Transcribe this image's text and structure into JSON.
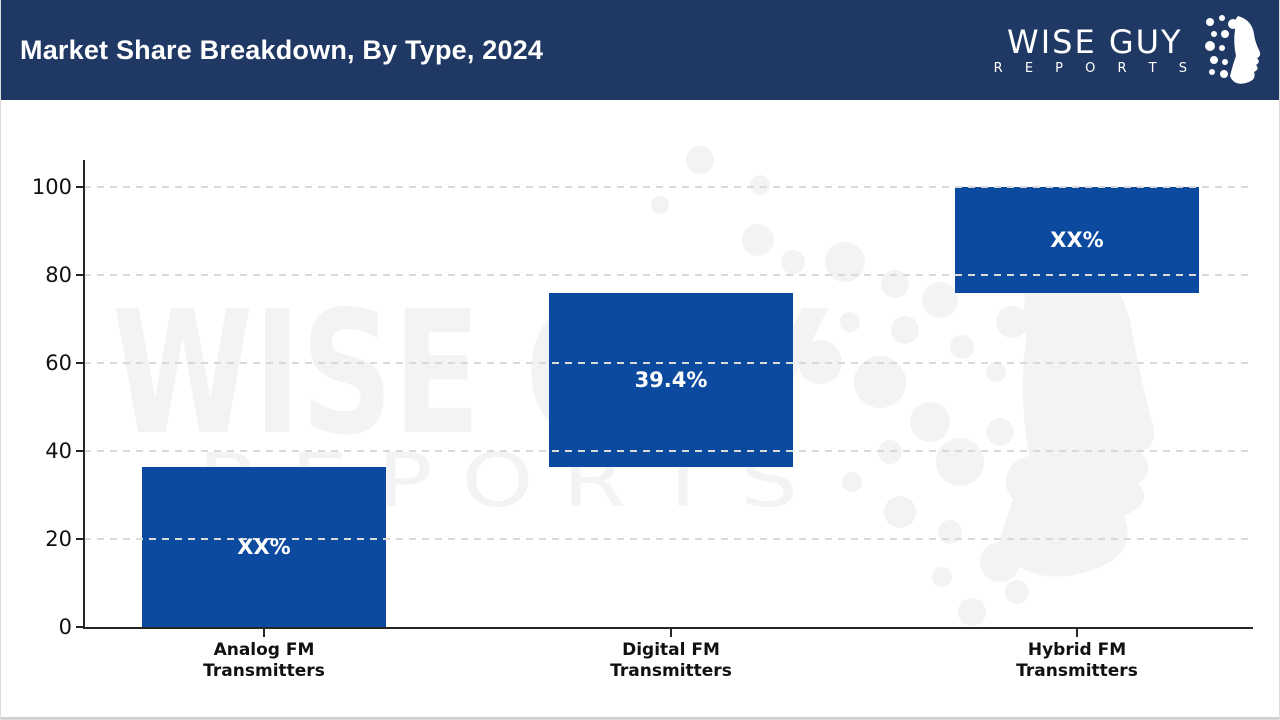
{
  "header": {
    "title": "Market Share Breakdown, By Type, 2024",
    "bg_color": "#1f3864",
    "logo": {
      "line1": "WISE GUY",
      "line2": "R E P O R T S",
      "icon": "dotted-face-profile-icon"
    }
  },
  "watermark": {
    "line1": "WISE GUY",
    "line2": "R E P O R T S",
    "color": "#f3f3f5"
  },
  "chart_data": {
    "type": "bar",
    "variant": "stacked-range-waterfall",
    "title": "Market Share Breakdown, By Type, 2024",
    "categories": [
      "Analog FM Transmitters",
      "Digital FM Transmitters",
      "Hybrid FM Transmitters"
    ],
    "bars": [
      {
        "category": "Analog FM Transmitters",
        "from": 0,
        "to": 36.4,
        "label": "XX%"
      },
      {
        "category": "Digital FM Transmitters",
        "from": 36.4,
        "to": 75.8,
        "label": "39.4%"
      },
      {
        "category": "Hybrid FM Transmitters",
        "from": 75.8,
        "to": 100,
        "label": "XX%"
      }
    ],
    "xlabel": "",
    "ylabel": "",
    "ylim": [
      0,
      100
    ],
    "yticks": [
      0,
      20,
      40,
      60,
      80,
      100
    ],
    "grid": {
      "style": "dashed",
      "color": "#d9d9d9",
      "orientation": "horizontal"
    },
    "bar_color": "#0b4a9e",
    "bar_label_color": "#ffffff",
    "axis_color": "#262626",
    "legend": "none"
  }
}
